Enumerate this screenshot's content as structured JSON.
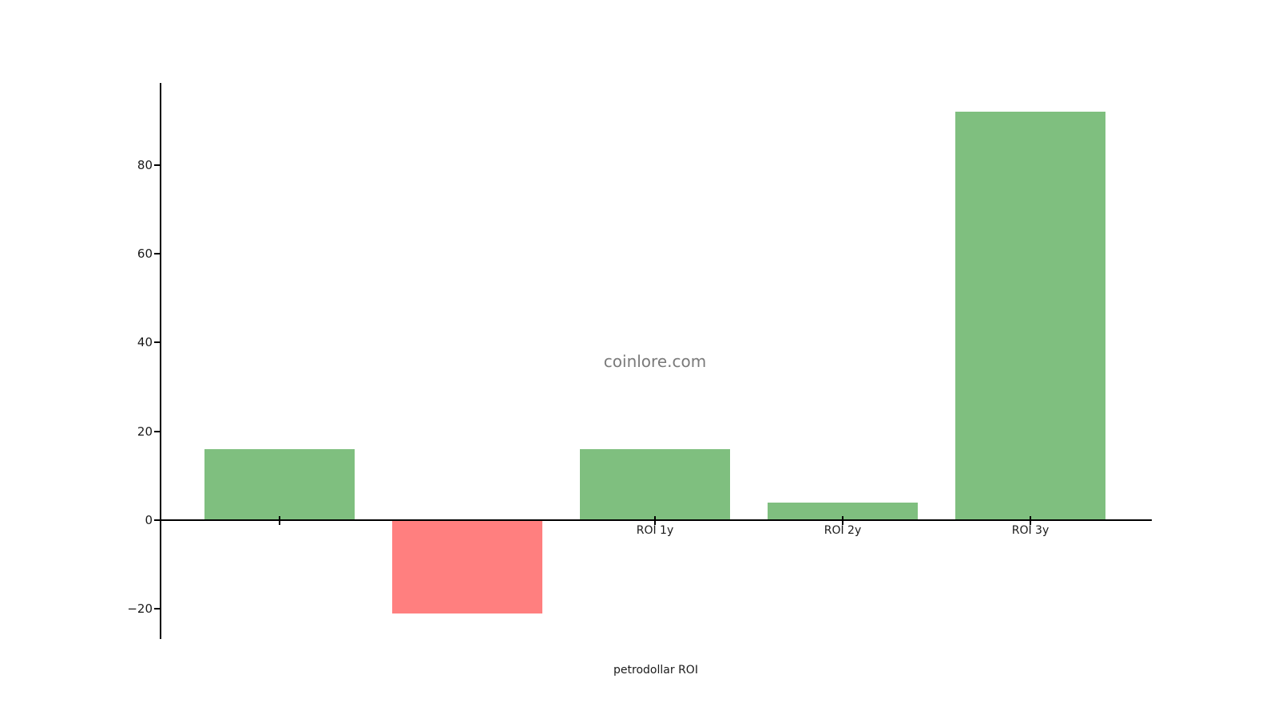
{
  "chart_data": {
    "type": "bar",
    "title": "",
    "xlabel": "petrodollar ROI",
    "ylabel": "",
    "watermark": "coinlore.com",
    "categories": [
      "",
      "",
      "ROI 1y",
      "ROI 2y",
      "ROI 3y"
    ],
    "values": [
      16,
      -21,
      16,
      4,
      92
    ],
    "bar_colors": [
      "#7fbf7f",
      "#ff7f7f",
      "#7fbf7f",
      "#7fbf7f",
      "#7fbf7f"
    ],
    "x_tick_visible": [
      true,
      false,
      true,
      true,
      true
    ],
    "ytick_values": [
      -20,
      0,
      20,
      40,
      60,
      80
    ],
    "ytick_labels": [
      "−20",
      "0",
      "20",
      "40",
      "60",
      "80"
    ],
    "ylim": [
      -26.6,
      98.5
    ],
    "grid": false,
    "legend": null,
    "colors": {
      "positive": "#7fbf7f",
      "negative": "#ff7f7f",
      "axis": "#000000",
      "text": "#1a1a1a",
      "watermark": "#7a7a7a"
    }
  }
}
